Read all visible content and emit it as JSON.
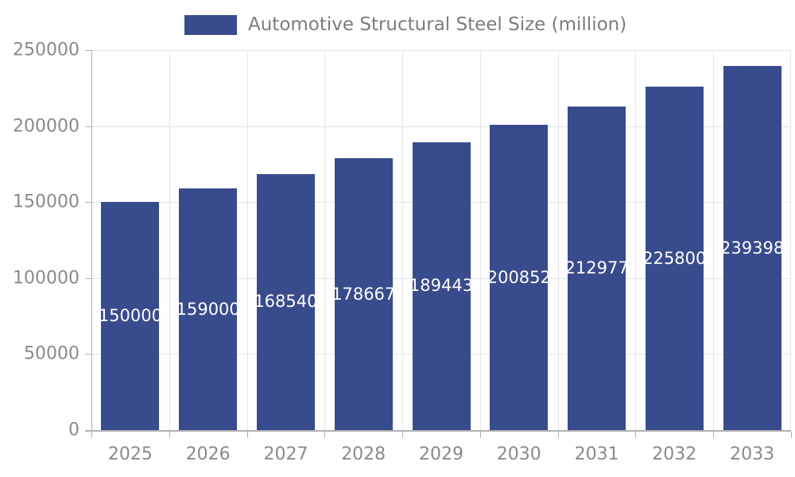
{
  "legend": {
    "label": "Automotive Structural Steel Size (million)"
  },
  "chart_data": {
    "type": "bar",
    "title": "",
    "categories": [
      "2025",
      "2026",
      "2027",
      "2028",
      "2029",
      "2030",
      "2031",
      "2032",
      "2033"
    ],
    "series": [
      {
        "name": "Automotive Structural Steel Size (million)",
        "values": [
          150000,
          159000,
          168540,
          178667,
          189443,
          200852,
          212977,
          225800,
          239398
        ]
      }
    ],
    "value_labels": [
      "150000",
      "159000",
      "168540",
      "178667",
      "189443",
      "200852",
      "212977",
      "225800",
      "239398"
    ],
    "ylim": [
      0,
      250000
    ],
    "ytick_interval": 50000,
    "yticks": [
      "0",
      "50000",
      "100000",
      "150000",
      "200000",
      "250000"
    ],
    "grid": true,
    "legend_position": "top",
    "colors": {
      "bar": "#384B8D",
      "bar_label": "#ffffff",
      "axis_text": "#8a8a8a",
      "legend_text": "#7c7c7c",
      "gridline": "#e5e5e5",
      "axis_line": "#b1b1b1"
    }
  }
}
